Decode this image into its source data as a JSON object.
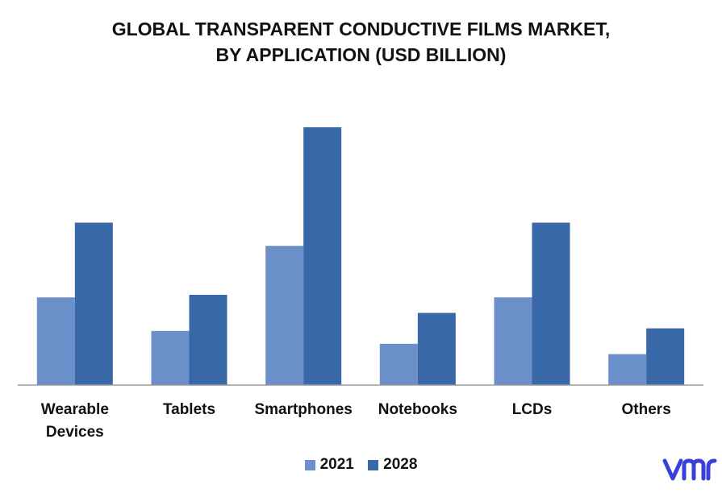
{
  "title": {
    "line1": "GLOBAL TRANSPARENT CONDUCTIVE FILMS MARKET,",
    "line2": "BY APPLICATION (USD BILLION)"
  },
  "colors": {
    "s2021": "#6b8fc9",
    "s2028": "#3868a8",
    "axis": "#9a9a9a",
    "logo": "#3a3fd8"
  },
  "logo": {
    "icon": "vmr-logo",
    "text": "vmr"
  },
  "chart_data": {
    "type": "bar",
    "title": "GLOBAL TRANSPARENT CONDUCTIVE FILMS MARKET, BY APPLICATION (USD BILLION)",
    "categories": [
      [
        "Wearable",
        "Devices"
      ],
      [
        "Tablets"
      ],
      [
        "Smartphones"
      ],
      [
        "Notebooks"
      ],
      [
        "LCDs"
      ],
      [
        "Others"
      ]
    ],
    "series": [
      {
        "name": "2021",
        "values": [
          3.4,
          2.1,
          5.4,
          1.6,
          3.4,
          1.2
        ]
      },
      {
        "name": "2028",
        "values": [
          6.3,
          3.5,
          10.0,
          2.8,
          6.3,
          2.2
        ]
      }
    ],
    "ylim": [
      0,
      11
    ],
    "xlabel": "",
    "ylabel": "",
    "grid": false,
    "legend": "bottom-center"
  }
}
